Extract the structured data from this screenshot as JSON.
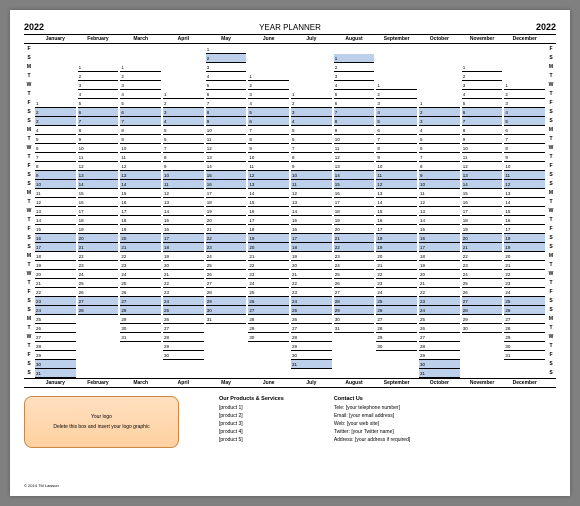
{
  "year": "2022",
  "title": "YEAR PLANNER",
  "months": [
    "January",
    "February",
    "March",
    "April",
    "May",
    "June",
    "July",
    "August",
    "September",
    "October",
    "November",
    "December"
  ],
  "day_labels": [
    "F",
    "S",
    "M",
    "T",
    "W",
    "T",
    "F",
    "S",
    "S",
    "M",
    "T",
    "W",
    "T",
    "F",
    "S",
    "S",
    "M",
    "T",
    "W",
    "T",
    "F",
    "S",
    "S",
    "M",
    "T",
    "W",
    "T",
    "F",
    "S",
    "S",
    "M",
    "T",
    "W",
    "T",
    "F",
    "S",
    "S"
  ],
  "weekend_row_indices": [
    1,
    7,
    8,
    14,
    15,
    21,
    22,
    28,
    29,
    35,
    36
  ],
  "month_start_offsets": [
    6,
    2,
    2,
    5,
    0,
    3,
    5,
    1,
    4,
    6,
    2,
    4
  ],
  "month_lengths": [
    31,
    28,
    31,
    30,
    31,
    30,
    31,
    31,
    30,
    31,
    30,
    31
  ],
  "colors": {
    "weekend_fill": "#bcd0eb",
    "rule": "#000000",
    "logo_border": "#cc8844",
    "logo_bg_top": "#ffe0c0",
    "logo_bg_bottom": "#ffd0a0",
    "page_bg": "#ffffff"
  },
  "footer": {
    "logo_line1": "Your logo",
    "logo_line2": "Delete this box and insert your logo graphic",
    "products_heading": "Our Products & Services",
    "products": [
      "[product 1]",
      "[product 2]",
      "[product 3]",
      "[product 4]",
      "[product 5]"
    ],
    "contact_heading": "Contact Us",
    "contact": [
      "Tele: [your telephone number]",
      "Email: [your email address]",
      "Web: [your web site]",
      "Twitter: [your Twitter name]",
      "Address: [your address if required]"
    ]
  },
  "copyright": "© 2014 TM Lawson"
}
